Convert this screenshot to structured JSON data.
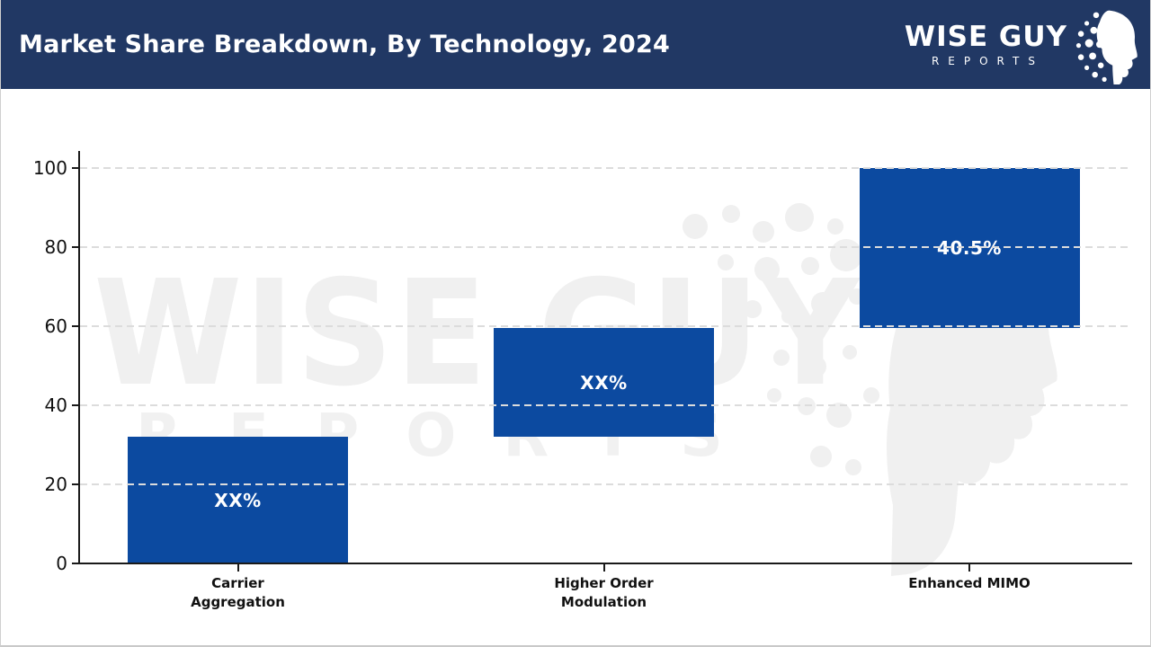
{
  "header": {
    "title": "Market Share Breakdown, By Technology, 2024"
  },
  "logo": {
    "name": "WISE GUY",
    "tagline": "REPORTS"
  },
  "watermark": {
    "line1": "WISE GUY",
    "line2": "REPORTS"
  },
  "chart_data": {
    "type": "bar",
    "subtype": "waterfall-floating-bars",
    "title": "Market Share Breakdown, By Technology, 2024",
    "categories": [
      "Carrier Aggregation",
      "Higher Order Modulation",
      "Enhanced MIMO"
    ],
    "category_lines": [
      [
        "Carrier",
        "Aggregation"
      ],
      [
        "Higher Order",
        "Modulation"
      ],
      [
        "Enhanced MIMO"
      ]
    ],
    "bars": [
      {
        "label": "XX%",
        "start": 0,
        "end": 32
      },
      {
        "label": "XX%",
        "start": 32,
        "end": 59.5
      },
      {
        "label": "40.5%",
        "start": 59.5,
        "end": 100
      }
    ],
    "yticks": [
      0,
      20,
      40,
      60,
      80,
      100
    ],
    "ylim": [
      0,
      100
    ],
    "xlabel": "",
    "ylabel": "",
    "grid": "horizontal-dashed-over-bars",
    "legend": "none",
    "bar_color": "#0C4AA0",
    "bar_label_color": "#ffffff",
    "header_bg_color": "#213864",
    "watermark_color": "#f0f0f0"
  }
}
